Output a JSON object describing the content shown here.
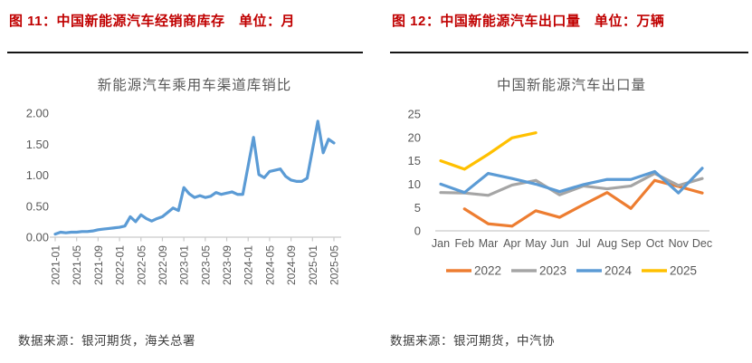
{
  "panels": {
    "left": {
      "header": "图 11：中国新能源汽车经销商库存　单位：月",
      "source": "数据来源：银河期货，海关总署"
    },
    "right": {
      "header": "图 12：中国新能源汽车出口量　单位：万辆",
      "source": "数据来源：银河期货，中汽协"
    }
  },
  "colors": {
    "header_red": "#C00000",
    "axis_text": "#595959",
    "axis_line": "#C9C9C9",
    "title_text": "#595959",
    "series_blue": "#5B9BD5",
    "series_orange": "#ED7D31",
    "series_gray": "#A5A5A5",
    "series_yellow": "#FFC000"
  },
  "chart_data": [
    {
      "type": "line",
      "title": "新能源汽车乘用车渠道库销比",
      "ylabel": "",
      "xlabel": "",
      "ylim": [
        0,
        2
      ],
      "ytick_labels": [
        "0.00",
        "0.50",
        "1.00",
        "1.50",
        "2.00"
      ],
      "grid": false,
      "legend_position": "none",
      "x_tick_every": 4,
      "x": [
        "2021-01",
        "2021-02",
        "2021-03",
        "2021-04",
        "2021-05",
        "2021-06",
        "2021-07",
        "2021-08",
        "2021-09",
        "2021-10",
        "2021-11",
        "2021-12",
        "2022-01",
        "2022-02",
        "2022-03",
        "2022-04",
        "2022-05",
        "2022-06",
        "2022-07",
        "2022-08",
        "2022-09",
        "2022-10",
        "2022-11",
        "2022-12",
        "2023-01",
        "2023-02",
        "2023-03",
        "2023-04",
        "2023-05",
        "2023-06",
        "2023-07",
        "2023-08",
        "2023-09",
        "2023-10",
        "2023-11",
        "2023-12",
        "2024-01",
        "2024-02",
        "2024-03",
        "2024-04",
        "2024-05",
        "2024-06",
        "2024-07",
        "2024-08",
        "2024-09",
        "2024-10",
        "2024-11",
        "2024-12",
        "2025-01",
        "2025-02",
        "2025-03",
        "2025-04",
        "2025-05"
      ],
      "series": [
        {
          "name": "渠道库销比",
          "color": "#5B9BD5",
          "values": [
            0.05,
            0.08,
            0.07,
            0.08,
            0.08,
            0.09,
            0.09,
            0.1,
            0.12,
            0.13,
            0.14,
            0.15,
            0.16,
            0.18,
            0.33,
            0.25,
            0.36,
            0.3,
            0.26,
            0.3,
            0.33,
            0.4,
            0.47,
            0.43,
            0.8,
            0.7,
            0.64,
            0.67,
            0.64,
            0.66,
            0.72,
            0.69,
            0.71,
            0.73,
            0.69,
            0.69,
            1.15,
            1.61,
            1.01,
            0.96,
            1.06,
            1.08,
            1.1,
            0.98,
            0.92,
            0.9,
            0.9,
            0.95,
            1.41,
            1.87,
            1.36,
            1.58,
            1.52
          ]
        }
      ]
    },
    {
      "type": "line",
      "title": "中国新能源汽车出口量",
      "ylabel": "",
      "xlabel": "",
      "ylim": [
        0,
        25
      ],
      "ytick_labels": [
        "0",
        "5",
        "10",
        "15",
        "20",
        "25"
      ],
      "grid": false,
      "legend_position": "bottom",
      "x_tick_every": 1,
      "x": [
        "Jan",
        "Feb",
        "Mar",
        "Apr",
        "May",
        "Jun",
        "Jul",
        "Aug",
        "Sep",
        "Oct",
        "Nov",
        "Dec"
      ],
      "series": [
        {
          "name": "2022",
          "color": "#ED7D31",
          "values": [
            null,
            4.7,
            1.5,
            1.0,
            4.3,
            2.9,
            5.6,
            8.2,
            4.8,
            10.8,
            9.5,
            8.1
          ]
        },
        {
          "name": "2023",
          "color": "#A5A5A5",
          "values": [
            8.2,
            8.1,
            7.6,
            9.8,
            10.8,
            7.7,
            9.6,
            9.0,
            9.6,
            12.3,
            9.7,
            11.2
          ]
        },
        {
          "name": "2024",
          "color": "#5B9BD5",
          "values": [
            10.0,
            8.2,
            12.3,
            11.2,
            10.0,
            8.4,
            9.9,
            11.0,
            11.0,
            12.7,
            8.1,
            13.4
          ]
        },
        {
          "name": "2025",
          "color": "#FFC000",
          "values": [
            15.0,
            13.2,
            16.4,
            19.9,
            21.0,
            null,
            null,
            null,
            null,
            null,
            null,
            null
          ]
        }
      ]
    }
  ]
}
